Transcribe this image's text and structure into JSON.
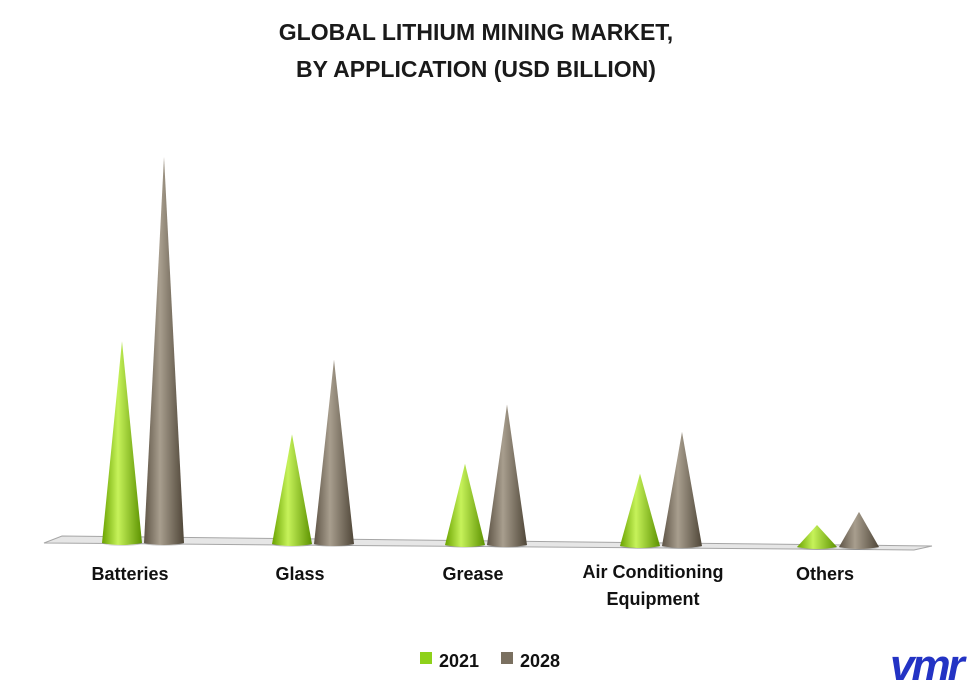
{
  "chart_data": {
    "type": "bar",
    "style": "3d-cone",
    "title_lines": [
      "GLOBAL LITHIUM MINING MARKET,",
      "BY APPLICATION (USD BILLION)"
    ],
    "categories": [
      [
        "Batteries"
      ],
      [
        "Glass"
      ],
      [
        "Grease"
      ],
      [
        "Air Conditioning",
        "Equipment"
      ],
      [
        "Others"
      ]
    ],
    "series": [
      {
        "name": "2021",
        "values": [
          4.6,
          2.5,
          1.85,
          1.65,
          0.5
        ]
      },
      {
        "name": "2028",
        "values": [
          8.8,
          4.2,
          3.2,
          2.6,
          0.8
        ]
      }
    ],
    "ylim": [
      0,
      9
    ],
    "grid": false,
    "axis_labels_visible": false,
    "legend_placement": "bottom-center"
  },
  "colors": {
    "series_2021": "#8ed11a",
    "series_2028": "#7a7060",
    "floor": "#d9d9d9",
    "logo": "#2333c4"
  },
  "logo": {
    "text": "vmr"
  }
}
